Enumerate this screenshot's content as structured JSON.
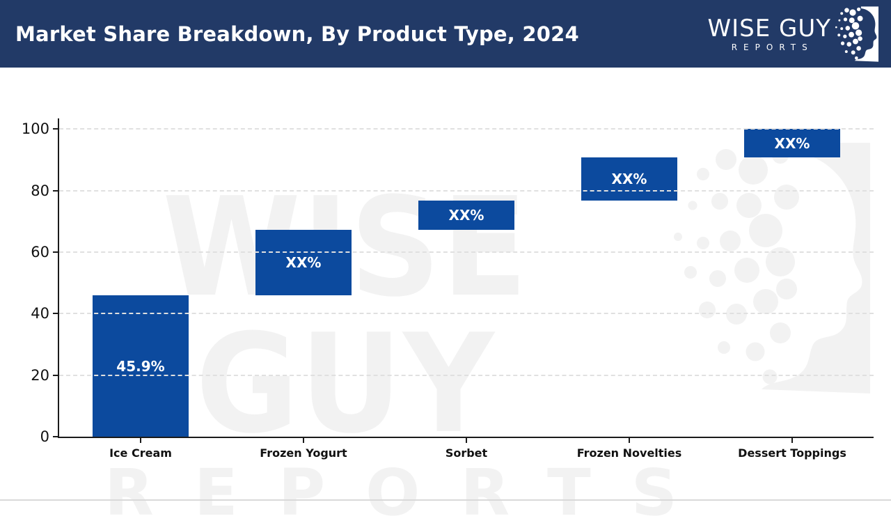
{
  "header": {
    "title": "Market Share Breakdown, By Product Type, 2024",
    "logo": {
      "line1": "WISE GUY",
      "line2": "REPORTS"
    }
  },
  "watermark": {
    "line1": "WISE GUY",
    "line2": "REPORTS"
  },
  "colors": {
    "header_bg": "#223a67",
    "bar": "#0c4a9e",
    "bar_label": "#ffffff",
    "gridline": "#e0e0e0",
    "axis": "#1a1a1a",
    "watermark": "#f2f2f2",
    "bottom_rule": "#d9d9d9"
  },
  "chart_data": {
    "type": "bar",
    "subtype": "waterfall",
    "title": "Market Share Breakdown, By Product Type, 2024",
    "categories": [
      "Ice Cream",
      "Frozen Yogurt",
      "Sorbet",
      "Frozen Novelties",
      "Dessert Toppings"
    ],
    "segments": [
      {
        "category": "Ice Cream",
        "start": 0,
        "end": 45.9,
        "label": "45.9%"
      },
      {
        "category": "Frozen Yogurt",
        "start": 45.9,
        "end": 67.2,
        "label": "XX%"
      },
      {
        "category": "Sorbet",
        "start": 67.2,
        "end": 76.8,
        "label": "XX%"
      },
      {
        "category": "Frozen Novelties",
        "start": 76.8,
        "end": 90.7,
        "label": "XX%"
      },
      {
        "category": "Dessert Toppings",
        "start": 90.7,
        "end": 100,
        "label": "XX%"
      }
    ],
    "xlabel": "",
    "ylabel": "",
    "yticks": [
      0,
      20,
      40,
      60,
      80,
      100
    ],
    "ylim": [
      0,
      105
    ],
    "grid": {
      "horizontal": true,
      "style": "dashed"
    },
    "legend": null,
    "value_unit": "%"
  }
}
